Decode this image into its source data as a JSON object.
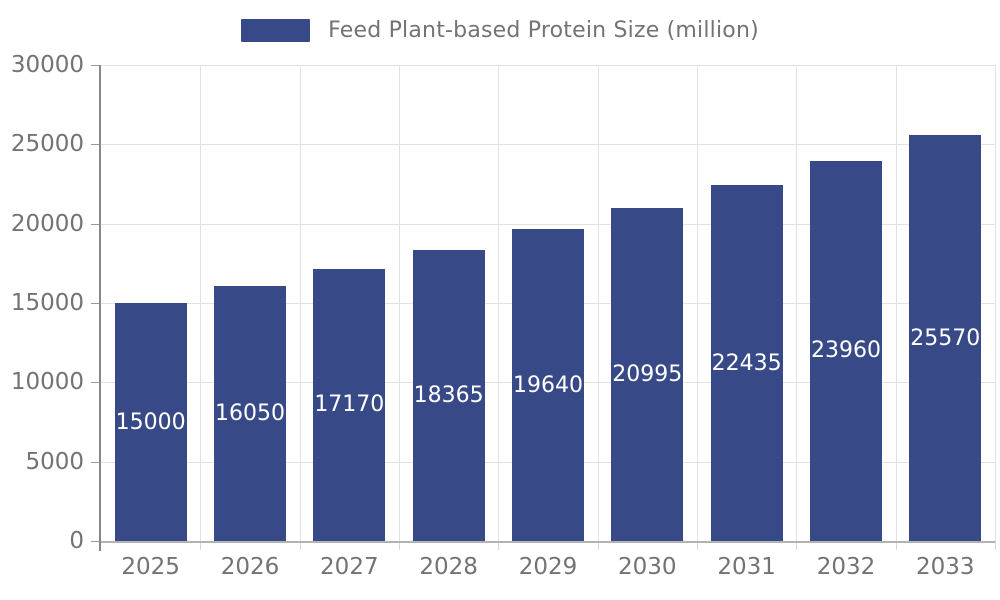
{
  "chart_data": {
    "type": "bar",
    "title": "Feed Plant-based Protein Size (million)",
    "categories": [
      "2025",
      "2026",
      "2027",
      "2028",
      "2029",
      "2030",
      "2031",
      "2032",
      "2033"
    ],
    "values": [
      15000,
      16050,
      17170,
      18365,
      19640,
      20995,
      22435,
      23960,
      25570
    ],
    "xlabel": "",
    "ylabel": "",
    "ylim": [
      0,
      30000
    ],
    "yticks": [
      0,
      5000,
      10000,
      15000,
      20000,
      25000,
      30000
    ],
    "grid": true,
    "legend_position": "top",
    "bar_color": "#374a87",
    "value_label_color": "#ffffff"
  },
  "colors": {
    "bar": "#374a87",
    "axis_text": "#737373",
    "grid_line": "#e2e2e2",
    "x_axis_line": "#b3b3b3",
    "y_axis_line": "#878787",
    "background": "#ffffff",
    "value_text": "#ffffff"
  }
}
